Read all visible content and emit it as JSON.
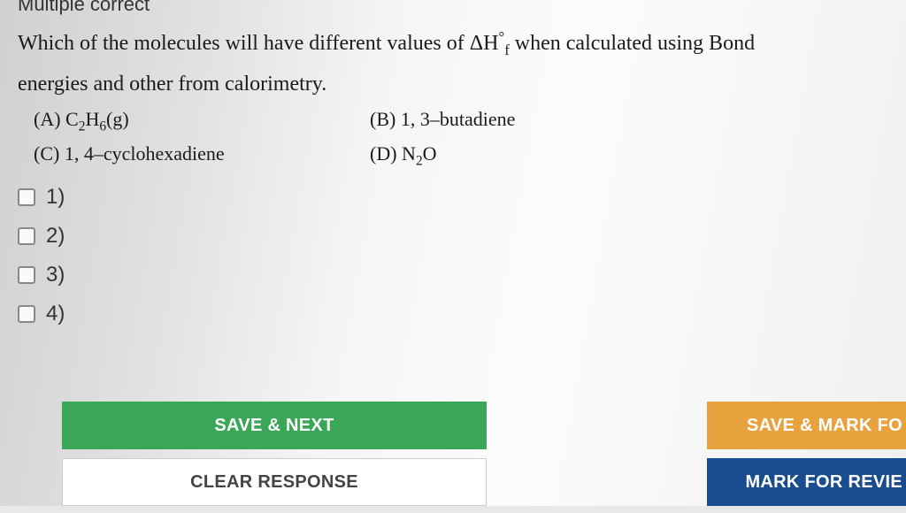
{
  "header_fragment": "Multiple correct",
  "question": {
    "line1_pre": "Which of the molecules will have different values of ",
    "delta_h": "ΔH",
    "delta_h_sub": "f",
    "delta_h_sup": "°",
    "line1_post": " when calculated using Bond",
    "line2": "energies and other from calorimetry."
  },
  "options": {
    "a": {
      "prefix": "(A) ",
      "formula_main": "C",
      "formula_s1": "2",
      "formula_mid": "H",
      "formula_s2": "6",
      "formula_post": "(g)"
    },
    "b": {
      "prefix": "(B) ",
      "text": "1, 3–butadiene"
    },
    "c": {
      "prefix": "(C) ",
      "text": "1, 4–cyclohexadiene"
    },
    "d": {
      "prefix": "(D) ",
      "formula_main": "N",
      "formula_s1": "2",
      "formula_mid": "O"
    }
  },
  "answers": [
    "1)",
    "2)",
    "3)",
    "4)"
  ],
  "buttons": {
    "save_next": "SAVE & NEXT",
    "save_mark": "SAVE & MARK FO",
    "clear": "CLEAR RESPONSE",
    "mark_review": "MARK FOR REVIE"
  },
  "colors": {
    "save_next_bg": "#3aa757",
    "save_mark_bg": "#e8a23d",
    "clear_bg": "#ffffff",
    "mark_review_bg": "#1a4d8f",
    "text_dark": "#1a1a1a",
    "text_grey": "#444444"
  }
}
